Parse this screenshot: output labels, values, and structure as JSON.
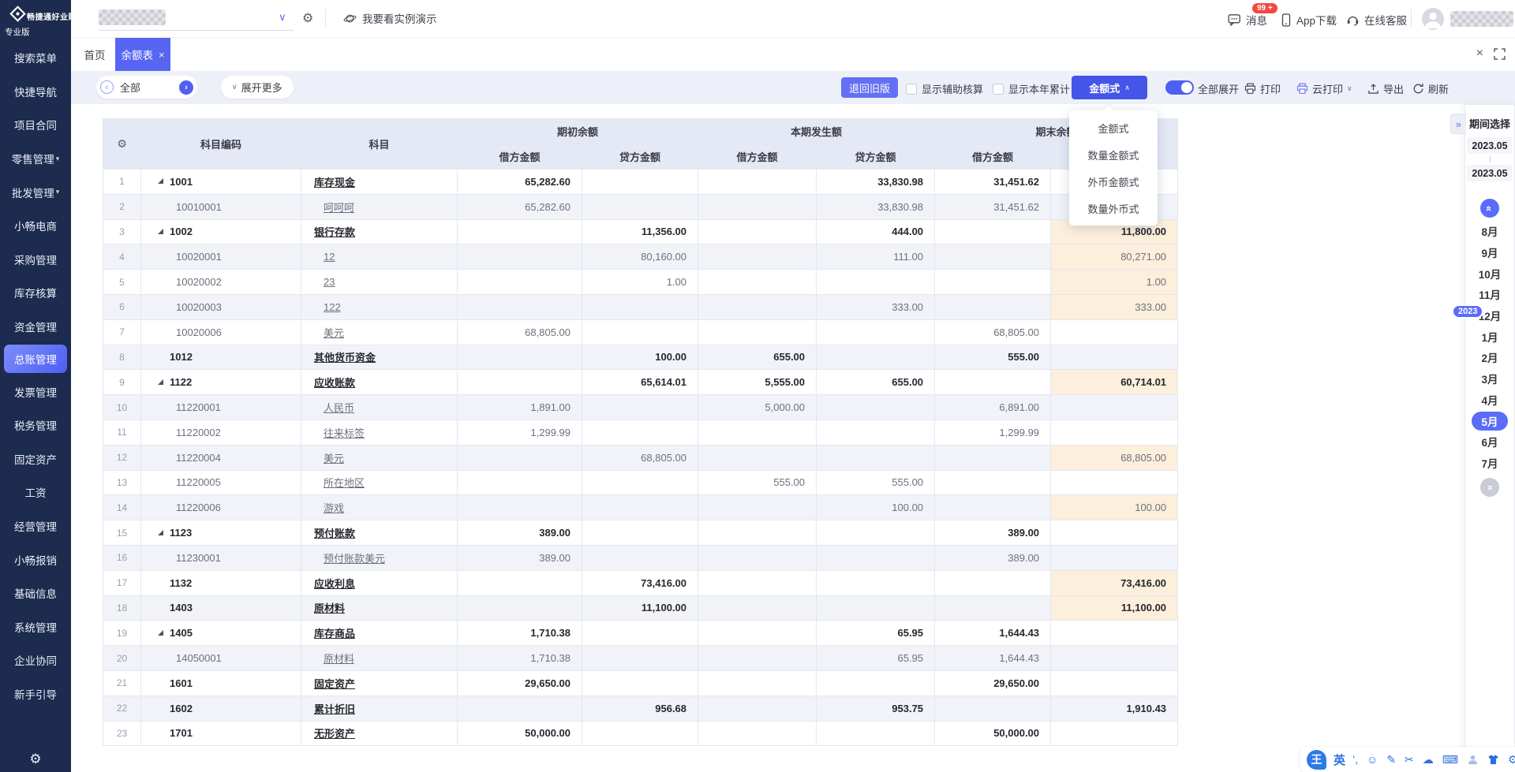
{
  "brand": {
    "name": "畅捷通好业财",
    "edition": "专业版"
  },
  "sidebar": {
    "items": [
      {
        "label": "搜索菜单"
      },
      {
        "label": "快捷导航"
      },
      {
        "label": "项目合同"
      },
      {
        "label": "零售管理",
        "caret": true
      },
      {
        "label": "批发管理",
        "caret": true
      },
      {
        "label": "小畅电商"
      },
      {
        "label": "采购管理"
      },
      {
        "label": "库存核算"
      },
      {
        "label": "资金管理"
      },
      {
        "label": "总账管理",
        "active": true
      },
      {
        "label": "发票管理"
      },
      {
        "label": "税务管理"
      },
      {
        "label": "固定资产"
      },
      {
        "label": "工资"
      },
      {
        "label": "经营管理"
      },
      {
        "label": "小畅报销"
      },
      {
        "label": "基础信息"
      },
      {
        "label": "系统管理"
      },
      {
        "label": "企业协同"
      },
      {
        "label": "新手引导"
      }
    ]
  },
  "topbar": {
    "demo_label": "我要看实例演示",
    "messages_label": "消息",
    "messages_badge": "99 +",
    "app_label": "App下载",
    "support_label": "在线客服"
  },
  "tabs": {
    "home_label": "首页",
    "active_label": "余额表",
    "close": "×"
  },
  "toolbar": {
    "filter_value": "全部",
    "expand_more_label": "展开更多",
    "back_old_label": "退回旧版",
    "show_aux_label": "显示辅助核算",
    "show_ytd_label": "显示本年累计",
    "format_label": "金额式",
    "expand_all_label": "全部展开",
    "print_label": "打印",
    "cloud_print_label": "云打印",
    "export_label": "导出",
    "refresh_label": "刷新"
  },
  "format_menu": {
    "options": [
      "金额式",
      "数量金额式",
      "外币金额式",
      "数量外币式"
    ]
  },
  "table": {
    "header": {
      "code": "科目编码",
      "name": "科目",
      "groups": [
        "期初余额",
        "本期发生额",
        "期末余额"
      ],
      "sub": [
        "借方金额",
        "贷方金额"
      ]
    },
    "rows": [
      {
        "n": 1,
        "code": "1001",
        "name": "库存现金",
        "parent": true,
        "expand": true,
        "cells": [
          "65,282.60",
          "",
          "",
          "33,830.98",
          "31,451.62",
          ""
        ],
        "hl": []
      },
      {
        "n": 2,
        "code": "10010001",
        "name": "呵呵呵",
        "parent": false,
        "expand": false,
        "cells": [
          "65,282.60",
          "",
          "",
          "33,830.98",
          "31,451.62",
          ""
        ],
        "hl": []
      },
      {
        "n": 3,
        "code": "1002",
        "name": "银行存款",
        "parent": true,
        "expand": true,
        "cells": [
          "",
          "11,356.00",
          "",
          "444.00",
          "",
          "11,800.00"
        ],
        "hl": [
          5
        ]
      },
      {
        "n": 4,
        "code": "10020001",
        "name": "12",
        "parent": false,
        "expand": false,
        "cells": [
          "",
          "80,160.00",
          "",
          "111.00",
          "",
          "80,271.00"
        ],
        "hl": [
          5
        ]
      },
      {
        "n": 5,
        "code": "10020002",
        "name": "23",
        "parent": false,
        "expand": false,
        "cells": [
          "",
          "1.00",
          "",
          "",
          "",
          "1.00"
        ],
        "hl": [
          5
        ]
      },
      {
        "n": 6,
        "code": "10020003",
        "name": "122",
        "parent": false,
        "expand": false,
        "cells": [
          "",
          "",
          "",
          "333.00",
          "",
          "333.00"
        ],
        "hl": [
          5
        ]
      },
      {
        "n": 7,
        "code": "10020006",
        "name": "美元",
        "parent": false,
        "expand": false,
        "cells": [
          "68,805.00",
          "",
          "",
          "",
          "68,805.00",
          ""
        ],
        "hl": []
      },
      {
        "n": 8,
        "code": "1012",
        "name": "其他货币资金",
        "parent": true,
        "expand": false,
        "cells": [
          "",
          "100.00",
          "655.00",
          "",
          "555.00",
          ""
        ],
        "hl": []
      },
      {
        "n": 9,
        "code": "1122",
        "name": "应收账款",
        "parent": true,
        "expand": true,
        "cells": [
          "",
          "65,614.01",
          "5,555.00",
          "655.00",
          "",
          "60,714.01"
        ],
        "hl": [
          5
        ]
      },
      {
        "n": 10,
        "code": "11220001",
        "name": "人民币",
        "parent": false,
        "expand": false,
        "cells": [
          "1,891.00",
          "",
          "5,000.00",
          "",
          "6,891.00",
          ""
        ],
        "hl": []
      },
      {
        "n": 11,
        "code": "11220002",
        "name": "往来标签",
        "parent": false,
        "expand": false,
        "cells": [
          "1,299.99",
          "",
          "",
          "",
          "1,299.99",
          ""
        ],
        "hl": []
      },
      {
        "n": 12,
        "code": "11220004",
        "name": "美元",
        "parent": false,
        "expand": false,
        "cells": [
          "",
          "68,805.00",
          "",
          "",
          "",
          "68,805.00"
        ],
        "hl": [
          5
        ]
      },
      {
        "n": 13,
        "code": "11220005",
        "name": "所在地区",
        "parent": false,
        "expand": false,
        "cells": [
          "",
          "",
          "555.00",
          "555.00",
          "",
          ""
        ],
        "hl": []
      },
      {
        "n": 14,
        "code": "11220006",
        "name": "游戏",
        "parent": false,
        "expand": false,
        "cells": [
          "",
          "",
          "",
          "100.00",
          "",
          "100.00"
        ],
        "hl": [
          5
        ]
      },
      {
        "n": 15,
        "code": "1123",
        "name": "预付账款",
        "parent": true,
        "expand": true,
        "cells": [
          "389.00",
          "",
          "",
          "",
          "389.00",
          ""
        ],
        "hl": []
      },
      {
        "n": 16,
        "code": "11230001",
        "name": "预付账款美元",
        "parent": false,
        "expand": false,
        "cells": [
          "389.00",
          "",
          "",
          "",
          "389.00",
          ""
        ],
        "hl": []
      },
      {
        "n": 17,
        "code": "1132",
        "name": "应收利息",
        "parent": true,
        "expand": false,
        "cells": [
          "",
          "73,416.00",
          "",
          "",
          "",
          "73,416.00"
        ],
        "hl": [
          5
        ]
      },
      {
        "n": 18,
        "code": "1403",
        "name": "原材料",
        "parent": true,
        "expand": false,
        "cells": [
          "",
          "11,100.00",
          "",
          "",
          "",
          "11,100.00"
        ],
        "hl": [
          5
        ]
      },
      {
        "n": 19,
        "code": "1405",
        "name": "库存商品",
        "parent": true,
        "expand": true,
        "cells": [
          "1,710.38",
          "",
          "",
          "65.95",
          "1,644.43",
          ""
        ],
        "hl": []
      },
      {
        "n": 20,
        "code": "14050001",
        "name": "原材料",
        "parent": false,
        "expand": false,
        "cells": [
          "1,710.38",
          "",
          "",
          "65.95",
          "1,644.43",
          ""
        ],
        "hl": []
      },
      {
        "n": 21,
        "code": "1601",
        "name": "固定资产",
        "parent": true,
        "expand": false,
        "cells": [
          "29,650.00",
          "",
          "",
          "",
          "29,650.00",
          ""
        ],
        "hl": []
      },
      {
        "n": 22,
        "code": "1602",
        "name": "累计折旧",
        "parent": true,
        "expand": false,
        "cells": [
          "",
          "956.68",
          "",
          "953.75",
          "",
          "1,910.43"
        ],
        "hl": []
      },
      {
        "n": 23,
        "code": "1701",
        "name": "无形资产",
        "parent": true,
        "expand": false,
        "cells": [
          "50,000.00",
          "",
          "",
          "",
          "50,000.00",
          ""
        ],
        "hl": []
      }
    ]
  },
  "period_panel": {
    "title": "期间选择",
    "date_from": "2023.05",
    "date_to": "2023.05",
    "year_badge": "2023",
    "months": [
      "8月",
      "9月",
      "10月",
      "11月",
      "12月",
      "1月",
      "2月",
      "3月",
      "4月",
      "5月",
      "6月",
      "7月"
    ],
    "selected_month": "5月"
  },
  "ime": {
    "logo": "王",
    "lang": "英",
    "icons": [
      {
        "name": "punctuation-icon",
        "glyph": "’,"
      },
      {
        "name": "emoji-icon",
        "glyph": "☺"
      },
      {
        "name": "handwriting-icon",
        "glyph": "✎"
      },
      {
        "name": "scissors-icon",
        "glyph": "✂"
      },
      {
        "name": "cloud-icon",
        "glyph": "☁"
      },
      {
        "name": "keyboard-icon",
        "glyph": "⌨"
      },
      {
        "name": "account-icon",
        "glyph": "person"
      },
      {
        "name": "skin-icon",
        "glyph": "shirt"
      },
      {
        "name": "settings-icon",
        "glyph": "⚙"
      }
    ]
  }
}
